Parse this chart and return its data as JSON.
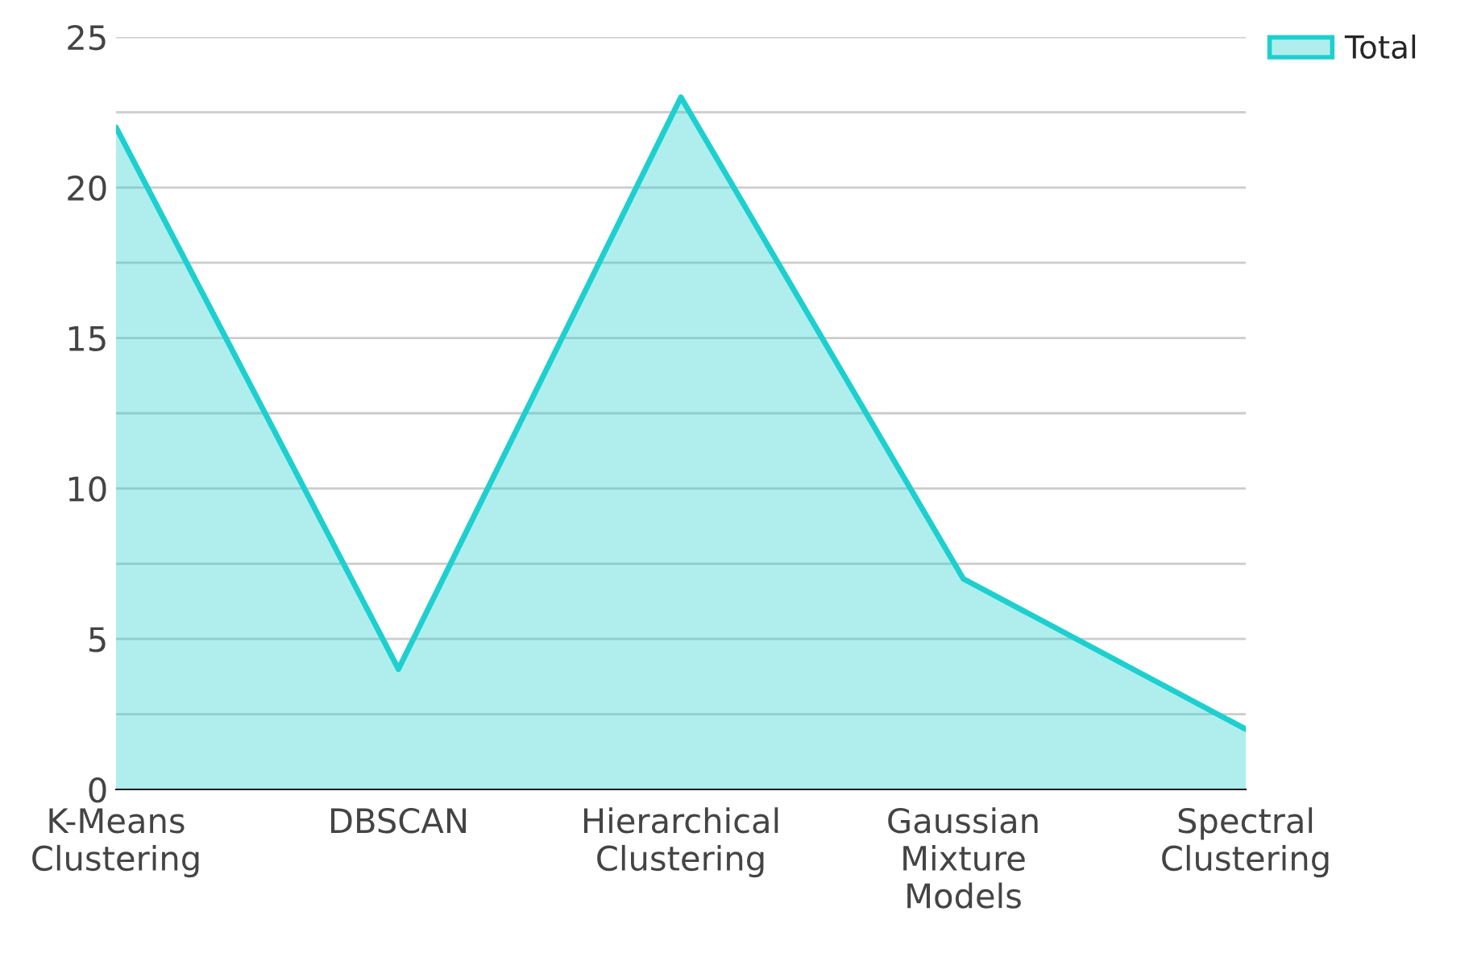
{
  "chart_data": {
    "type": "area",
    "categories": [
      "K-Means Clustering",
      "DBSCAN",
      "Hierarchical Clustering",
      "Gaussian Mixture Models",
      "Spectral Clustering"
    ],
    "series": [
      {
        "name": "Total",
        "color": "#1ecfcf",
        "values": [
          22,
          4,
          23,
          7,
          2
        ]
      }
    ],
    "ylim": [
      0,
      25
    ],
    "yticks": [
      0,
      {
        "value": 2.5,
        "label": null
      },
      5,
      {
        "value": 7.5,
        "label": null
      },
      10,
      {
        "value": 12.5,
        "label": null
      },
      15,
      {
        "value": 17.5,
        "label": null
      },
      20,
      {
        "value": 22.5,
        "label": null
      },
      25
    ],
    "grid": "y",
    "legend": "top right"
  }
}
